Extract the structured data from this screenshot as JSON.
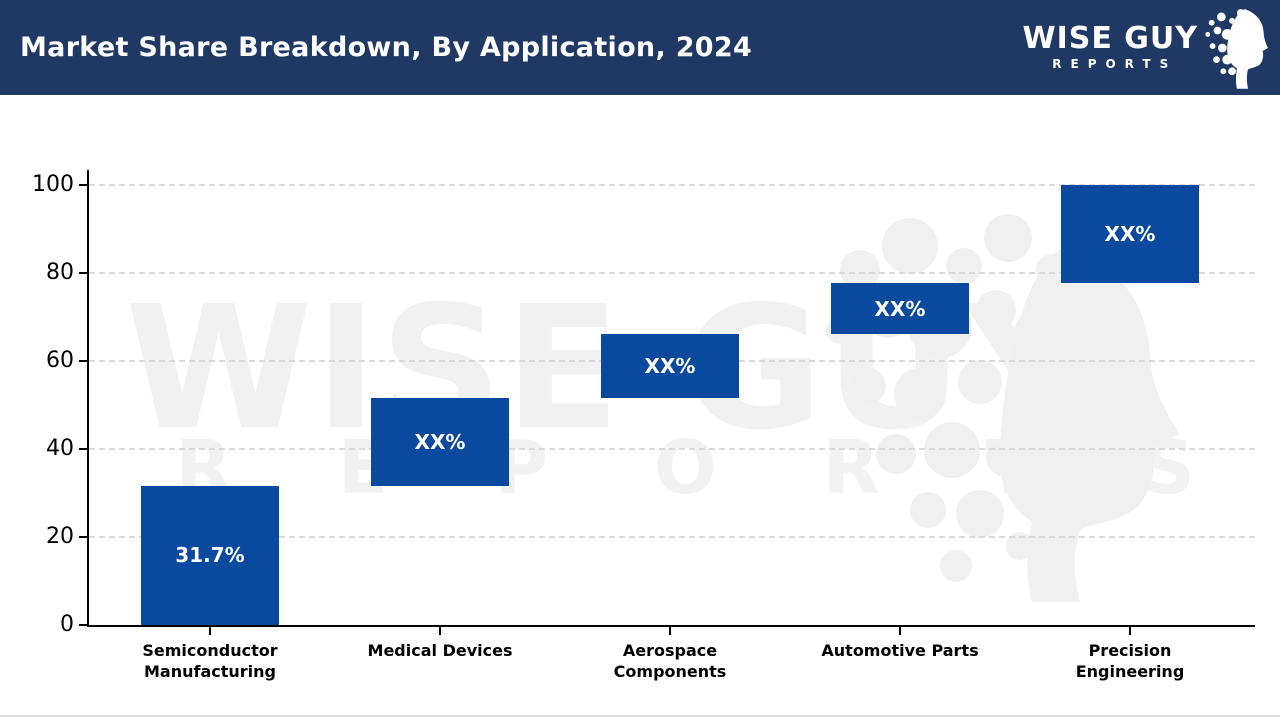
{
  "header": {
    "title": "Market Share Breakdown, By Application, 2024",
    "bg_color": "#1f3864",
    "logo": {
      "line1": "WISE GUY",
      "line2": "REPORTS"
    }
  },
  "watermark": {
    "line1": "WISE GUY",
    "line2": "R E P O R T S"
  },
  "chart_data": {
    "type": "bar",
    "subtype": "waterfall",
    "title": "Market Share Breakdown, By Application, 2024",
    "categories": [
      "Semiconductor\nManufacturing",
      "Medical Devices",
      "Aerospace\nComponents",
      "Automotive Parts",
      "Precision\nEngineering"
    ],
    "segments": [
      {
        "category": "Semiconductor Manufacturing",
        "start": 0,
        "end": 31.7,
        "label": "31.7%"
      },
      {
        "category": "Medical Devices",
        "start": 31.7,
        "end": 51.7,
        "label": "XX%"
      },
      {
        "category": "Aerospace Components",
        "start": 51.7,
        "end": 66.1,
        "label": "XX%"
      },
      {
        "category": "Automotive Parts",
        "start": 66.1,
        "end": 77.7,
        "label": "XX%"
      },
      {
        "category": "Precision Engineering",
        "start": 77.7,
        "end": 100,
        "label": "XX%"
      }
    ],
    "ylim": [
      0,
      100
    ],
    "yticks": [
      0,
      20,
      40,
      60,
      80,
      100
    ],
    "grid": "horizontal-dashed",
    "legend": "none",
    "bar_color": "#0a4a9e",
    "value_label_color": "#ffffff"
  }
}
